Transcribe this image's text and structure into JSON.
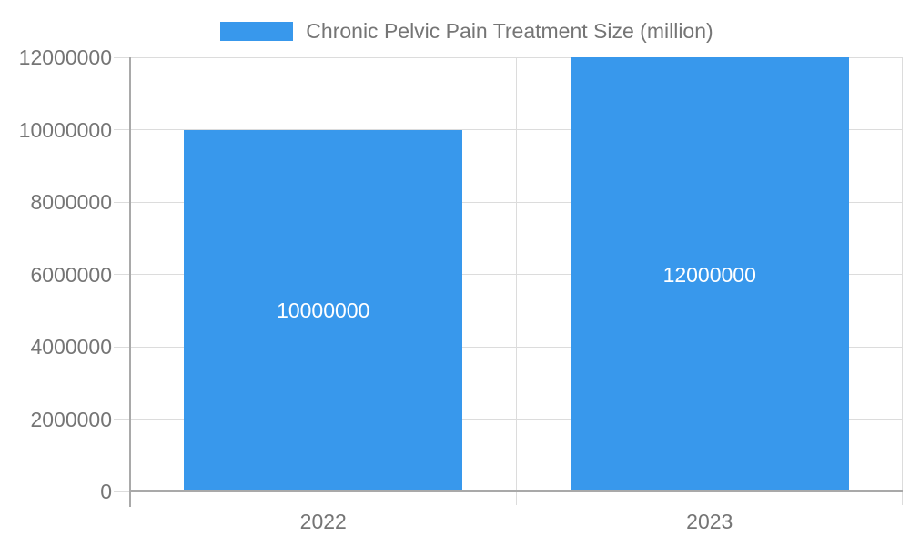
{
  "legend": {
    "label": "Chronic Pelvic Pain Treatment Size (million)"
  },
  "chart_data": {
    "type": "bar",
    "title": "Chronic Pelvic Pain Treatment Size (million)",
    "categories": [
      "2022",
      "2023"
    ],
    "values": [
      10000000,
      12000000
    ],
    "bar_labels": [
      "10000000",
      "12000000"
    ],
    "y_ticks": [
      "0",
      "2000000",
      "4000000",
      "6000000",
      "8000000",
      "10000000",
      "12000000"
    ],
    "ylim": [
      0,
      12000000
    ],
    "xlabel": "",
    "ylabel": "",
    "grid": true,
    "legend_position": "top"
  },
  "colors": {
    "bar": "#3898ec",
    "bar_label": "#ffffff",
    "tick_text": "#757575",
    "axis_line": "#a9a9a9",
    "gridline": "#dcdcdc",
    "background": "#ffffff"
  }
}
